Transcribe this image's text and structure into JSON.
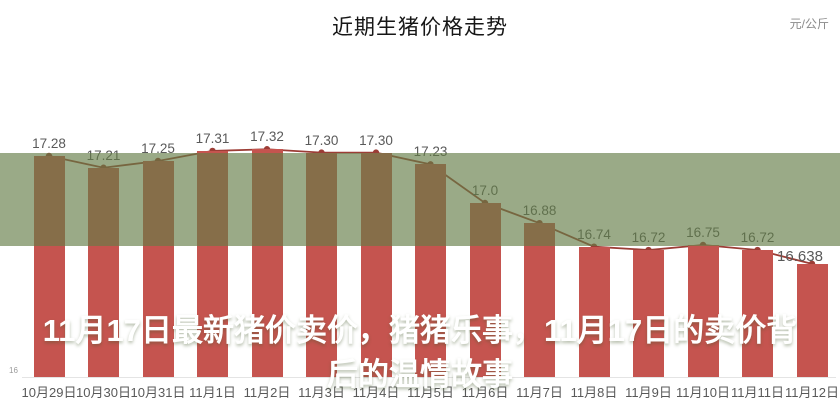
{
  "header": {
    "title": "近期生猪价格走势",
    "unit": "元/公斤"
  },
  "overlay": {
    "title_full": "11月17日最新猪价卖价，猪猪乐事，11月17日的卖价背后的温情故事",
    "line1": "11月17日最新猪价卖价，猪猪乐事，11月17日的卖价背",
    "line2": "后的温情故事",
    "band_color": "rgba(100,124,70,0.65)",
    "text_color": "#ffffff"
  },
  "chart_data": {
    "type": "bar",
    "overlay_line": true,
    "title": "近期生猪价格走势",
    "ylabel": "元/公斤",
    "xlabel": "",
    "categories": [
      "10月29日",
      "10月30日",
      "10月31日",
      "11月1日",
      "11月2日",
      "11月3日",
      "11月4日",
      "11月5日",
      "11月6日",
      "11月7日",
      "11月8日",
      "11月9日",
      "11月10日",
      "11月11日",
      "11月12日"
    ],
    "values": [
      17.28,
      17.21,
      17.25,
      17.31,
      17.32,
      17.3,
      17.3,
      17.23,
      17.0,
      16.88,
      16.74,
      16.72,
      16.75,
      16.72,
      16.638
    ],
    "point_labels": [
      "17.28",
      "17.21",
      "17.25",
      "17.31",
      "17.32",
      "17.30",
      "17.30",
      "17.23",
      "17.0",
      "16.88",
      "16.74",
      "16.72",
      "16.75",
      "16.72",
      "16.638"
    ],
    "ymin": 16,
    "ylim": [
      16,
      17.5
    ],
    "y_ticks": [
      "16"
    ],
    "grid": "off",
    "legend": "none",
    "colors": {
      "bar": "#C5544F",
      "line": "#9C3D36",
      "dot": "#9C3D36",
      "value_label": "#595959",
      "axis_label": "#595959"
    }
  }
}
